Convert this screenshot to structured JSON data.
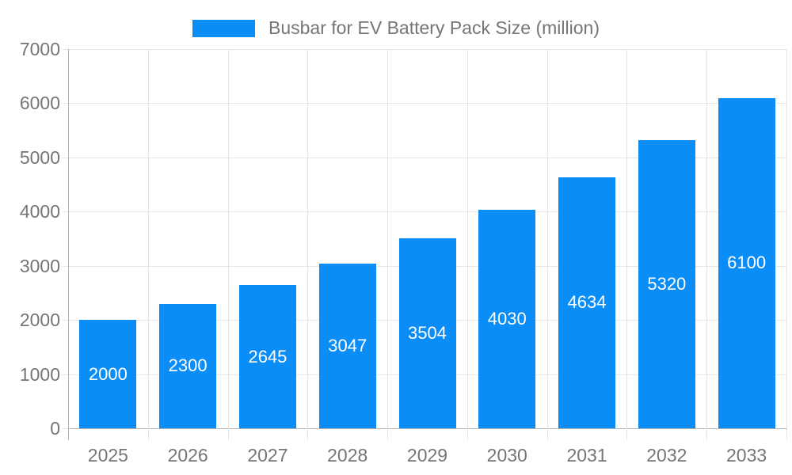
{
  "chart_data": {
    "type": "bar",
    "title": "Busbar for EV Battery Pack Size (million)",
    "categories": [
      "2025",
      "2026",
      "2027",
      "2028",
      "2029",
      "2030",
      "2031",
      "2032",
      "2033"
    ],
    "series": [
      {
        "name": "Busbar for EV Battery Pack Size (million)",
        "values": [
          2000,
          2300,
          2645,
          3047,
          3504,
          4030,
          4634,
          5320,
          6100
        ]
      }
    ],
    "xlabel": "",
    "ylabel": "",
    "ylim": [
      0,
      7000
    ],
    "ytick_step": 1000,
    "yticks": [
      0,
      1000,
      2000,
      3000,
      4000,
      5000,
      6000,
      7000
    ],
    "grid": true,
    "legend_position": "top-center",
    "value_label_position": "inside-center",
    "colors": {
      "bar": "#0b8df8",
      "value_label": "#ffffff",
      "axis_text": "#757575",
      "grid": "#e6e6e6",
      "axis_line": "#b3b3b3"
    }
  }
}
